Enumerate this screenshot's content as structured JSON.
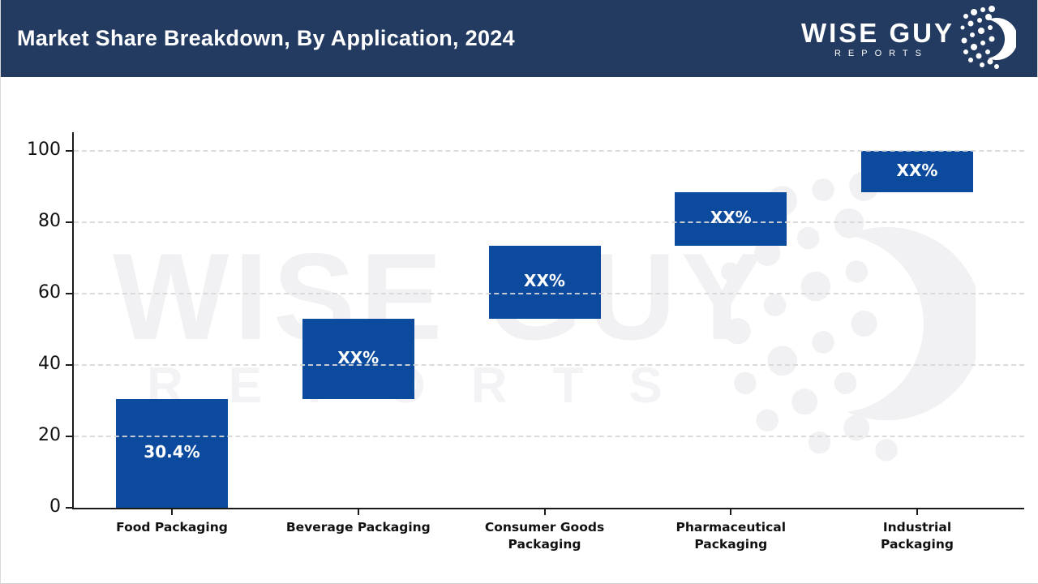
{
  "header": {
    "title": "Market Share Breakdown, By Application, 2024",
    "logo": {
      "wordmark": "WISE GUY",
      "subtitle": "REPORTS"
    }
  },
  "watermark": {
    "line1": "WISE GUY",
    "line2": "REPORTS"
  },
  "colors": {
    "header_bg": "#233a61",
    "bar": "#0b4a9d",
    "bar_label": "#ffffff",
    "grid": "#d8d8d8",
    "axis": "#1a1a1a",
    "watermark": "#f1f1f3"
  },
  "chart_data": {
    "type": "bar",
    "subtype": "waterfall",
    "title": "Market Share Breakdown, By Application, 2024",
    "categories": [
      "Food Packaging",
      "Beverage Packaging",
      "Consumer Goods\nPackaging",
      "Pharmaceutical\nPackaging",
      "Industrial\nPackaging"
    ],
    "series": [
      {
        "name": "Market Share",
        "segments": [
          {
            "category": "Food Packaging",
            "start": 0,
            "end": 30.4,
            "label": "30.4%"
          },
          {
            "category": "Beverage Packaging",
            "start": 30.4,
            "end": 53.0,
            "label": "XX%"
          },
          {
            "category": "Consumer Goods Packaging",
            "start": 53.0,
            "end": 73.3,
            "label": "XX%"
          },
          {
            "category": "Pharmaceutical Packaging",
            "start": 73.3,
            "end": 88.3,
            "label": "XX%"
          },
          {
            "category": "Industrial Packaging",
            "start": 88.3,
            "end": 100.0,
            "label": "XX%"
          }
        ]
      }
    ],
    "yticks": [
      0,
      20,
      40,
      60,
      80,
      100
    ],
    "ylim": [
      0,
      104
    ],
    "xlabel": "",
    "ylabel": "",
    "grid": {
      "axis": "y",
      "style": "dashed"
    },
    "legend": "none"
  }
}
